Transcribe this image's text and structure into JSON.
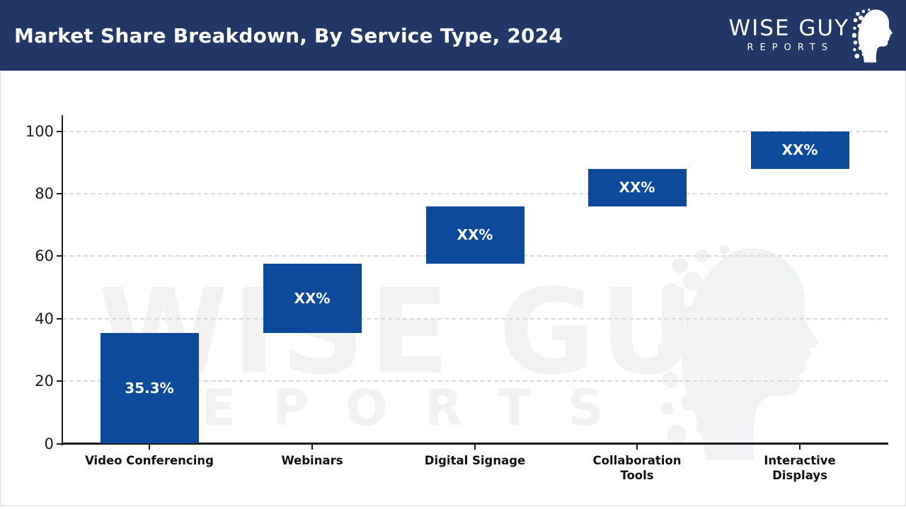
{
  "header": {
    "title": "Market Share Breakdown, By Service Type, 2024",
    "bg_color": "#223766",
    "logo": {
      "wordmark": "WISE GUY",
      "subtext": "REPORTS"
    }
  },
  "watermark": {
    "line1": "WISE GUY",
    "line2": "REPORTS"
  },
  "chart_data": {
    "type": "bar",
    "subtype": "waterfall",
    "title": "Market Share Breakdown, By Service Type, 2024",
    "categories": [
      "Video Conferencing",
      "Webinars",
      "Digital Signage",
      "Collaboration\nTools",
      "Interactive\nDisplays"
    ],
    "segments": [
      {
        "category": "Video Conferencing",
        "start": 0,
        "end": 35.3,
        "label": "35.3%"
      },
      {
        "category": "Webinars",
        "start": 35.3,
        "end": 57.5,
        "label": "XX%"
      },
      {
        "category": "Digital Signage",
        "start": 57.5,
        "end": 76,
        "label": "XX%"
      },
      {
        "category": "Collaboration Tools",
        "start": 76,
        "end": 88,
        "label": "XX%"
      },
      {
        "category": "Interactive Displays",
        "start": 88,
        "end": 100,
        "label": "XX%"
      }
    ],
    "yticks": [
      0,
      20,
      40,
      60,
      80,
      100
    ],
    "ylim": [
      0,
      105
    ],
    "xlabel": "",
    "ylabel": "",
    "bar_color": "#0d4a9c",
    "grid": "dashed-horizontal",
    "legend_position": "none"
  }
}
